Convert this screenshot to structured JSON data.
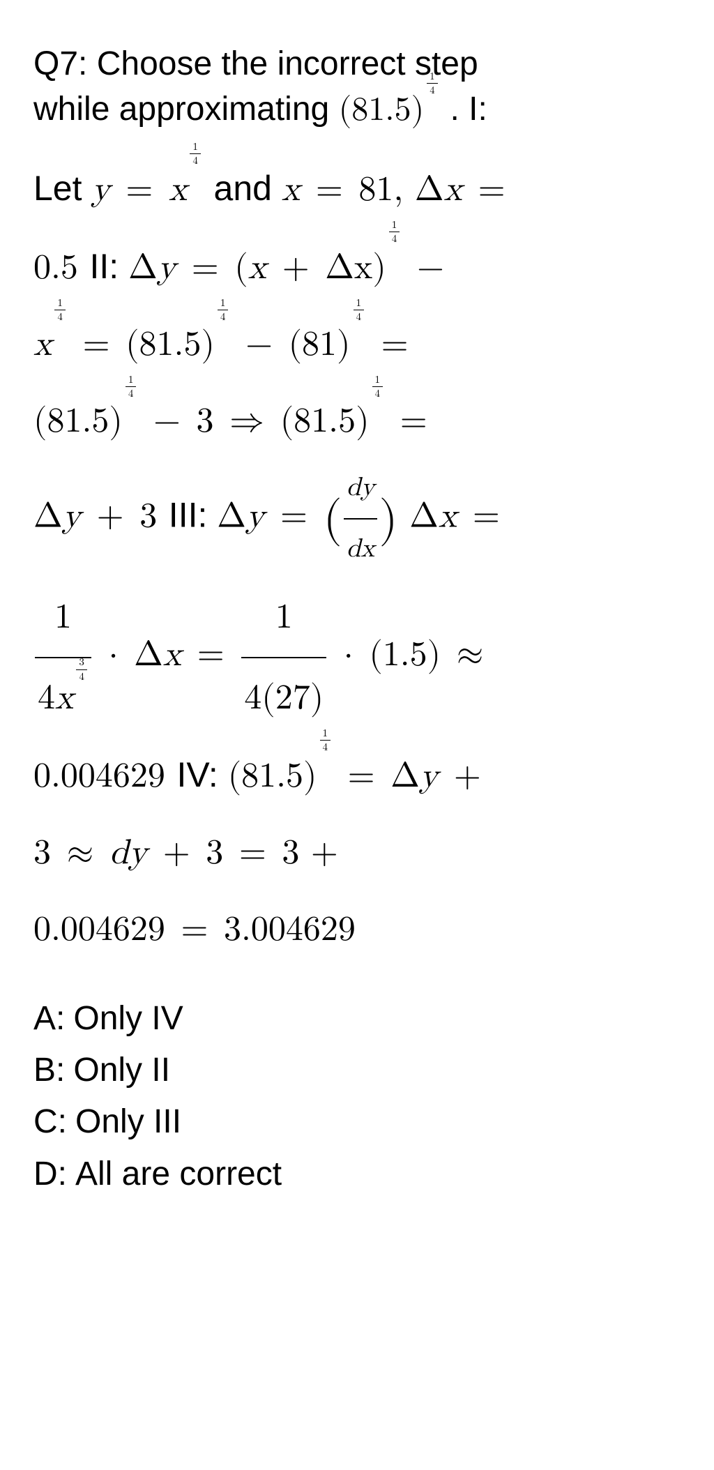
{
  "question": {
    "label": "Q7:",
    "prompt_part1": "Choose the incorrect step",
    "prompt_part2": "while approximating",
    "target_base": "(81.5)",
    "exp_num": "1",
    "exp_den": "4",
    "prompt_part3": ". I:",
    "step_I_text1": "Let ",
    "y": "y",
    "eq": "=",
    "x": "x",
    "and_text": " and ",
    "x_val": "81",
    "comma": ",",
    "Delta": "Δ",
    "dx_val_label": "0.5",
    "roman_II": " II: ",
    "plus": "+",
    "minus": "−",
    "open": "(",
    "close": ")",
    "Dx": "Δx",
    "val_81p5": "(81.5)",
    "val_81": "(81)",
    "three": "3",
    "implies": "⇒",
    "roman_III": " III: ",
    "dy": "dy",
    "dx": "dx",
    "one": "1",
    "four": "4",
    "three4": "3",
    "den4": "4",
    "twentyseven": "4(27)",
    "cdot": "⋅",
    "onep5": "(1.5)",
    "approx": "≈",
    "val_0004629": "0.004629",
    "roman_IV": " IV: ",
    "three_plus": "3 +",
    "final_sum": "3.004629"
  },
  "options": {
    "A": {
      "label": "A:",
      "text": "Only IV"
    },
    "B": {
      "label": "B:",
      "text": "Only II"
    },
    "C": {
      "label": "C:",
      "text": "Only III"
    },
    "D": {
      "label": "D:",
      "text": "All are correct"
    }
  }
}
